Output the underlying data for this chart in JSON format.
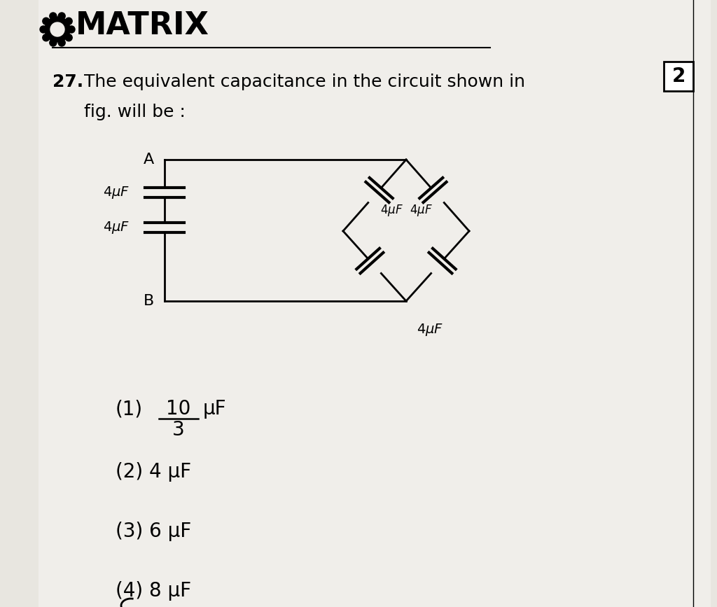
{
  "bg_color": "#e8e6e0",
  "title": "MATRIX",
  "question_num": "27.",
  "question_line1": "The equivalent capacitance in the circuit shown in",
  "question_line2": "fig. will be :",
  "side_num": "2",
  "cap_label": "4μF",
  "node_A": "A",
  "node_B": "B",
  "opt1_num": "(1)",
  "opt1_numer": "10",
  "opt1_denom": "3",
  "opt1_unit": "μF",
  "opt2": "(2) 4 μF",
  "opt3": "(3) 6 μF",
  "opt4_prefix": "(4) 8 μF",
  "lw": 2.0,
  "plate_lw": 3.0
}
